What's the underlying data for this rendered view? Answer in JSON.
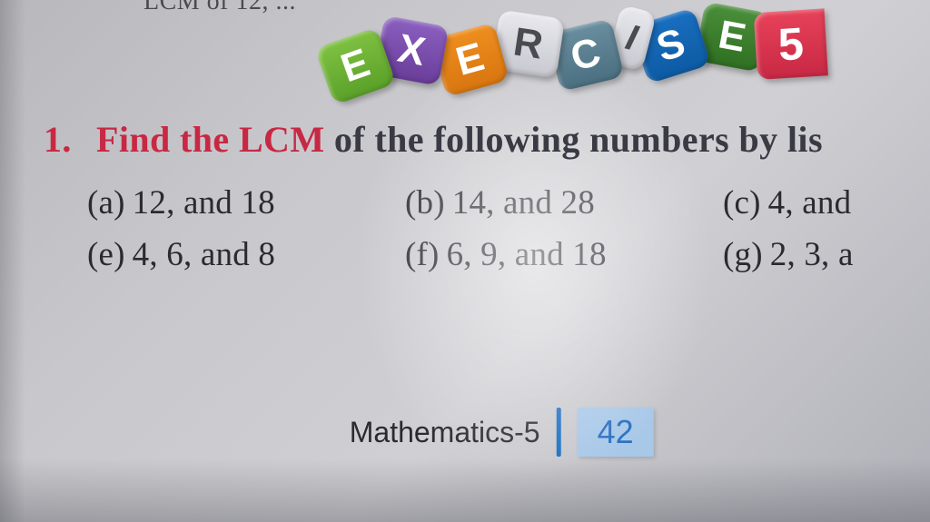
{
  "topCut": "LCM of 12, ...",
  "banner": {
    "letters": [
      "E",
      "X",
      "E",
      "R",
      "C",
      "I",
      "S",
      "E",
      "5"
    ],
    "tileClasses": [
      "t-e1",
      "t-x",
      "t-e2",
      "t-r",
      "t-c",
      "t-i",
      "t-s",
      "t-e3",
      "t-5"
    ],
    "colors": {
      "e1": "#7fc142",
      "x": "#8a5fbf",
      "e2": "#ef8f1f",
      "r": "#e8e8ee",
      "c": "#6a8fa0",
      "i": "#e8e8ee",
      "s": "#1a6fc1",
      "e3": "#4a8f3a",
      "five": "#e8425a"
    }
  },
  "question": {
    "number": "1.",
    "prefix": "Find the ",
    "lcm": "LCM",
    "suffix": " of the following numbers by lis",
    "color_red": "#c82844",
    "color_dark": "#3a3a44",
    "fontsize": 40
  },
  "options": {
    "row1": {
      "a": {
        "label": "(a)",
        "text": "12, and 18"
      },
      "b": {
        "label": "(b)",
        "text": "14, and 28"
      },
      "c": {
        "label": "(c)",
        "text": "4, and"
      }
    },
    "row2": {
      "e": {
        "label": "(e)",
        "text": "4, 6, and 8"
      },
      "f": {
        "label": "(f)",
        "text": "6, 9, and 18"
      },
      "g": {
        "label": "(g)",
        "text": "2, 3, a"
      }
    },
    "fontsize": 37,
    "text_color": "#2a2a30"
  },
  "footer": {
    "text": "Mathematics-5",
    "page": "42",
    "divider_color": "#1a6fc1",
    "page_bg": "#a8c8e8",
    "page_color": "#2a6fc1"
  }
}
